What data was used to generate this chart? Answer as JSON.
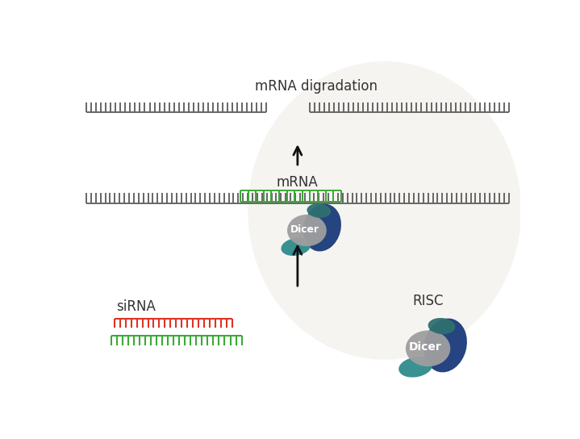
{
  "bg_color": "#ffffff",
  "bg_ellipse_color": "#f0ece6",
  "sirna_label": "siRNA",
  "mrna_label": "mRNA",
  "mrna_deg_label": "mRNA digradation",
  "risc_label": "RISC",
  "dicer_label": "Dicer",
  "strand_green_color": "#3aaa35",
  "strand_red_color": "#dd3322",
  "mrna_strand_color": "#666666",
  "dicer_gray": "#9e9e9e",
  "dicer_teal1": "#2e8b8b",
  "dicer_blue": "#1a3a7a",
  "dicer_teal2": "#2e7070",
  "arrow_color": "#111111",
  "label_fontsize": 12,
  "dicer_fontsize": 10
}
